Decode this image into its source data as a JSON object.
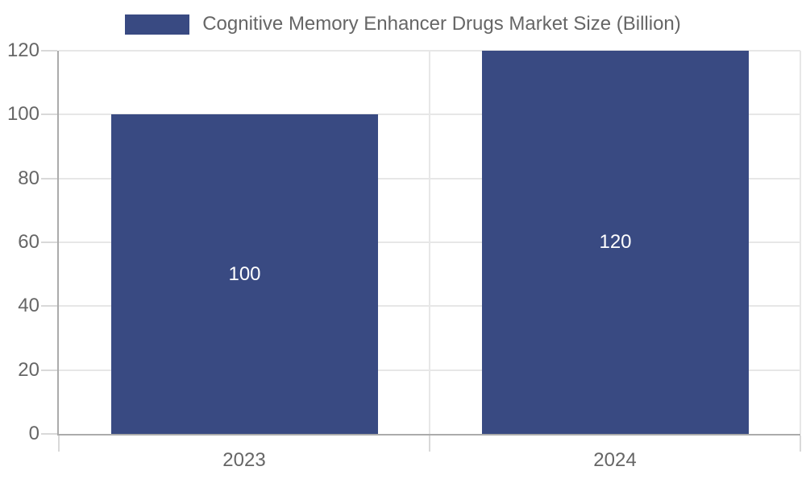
{
  "legend": {
    "label": "Cognitive Memory Enhancer Drugs Market Size (Billion)"
  },
  "chart_data": {
    "type": "bar",
    "title": "Cognitive Memory Enhancer Drugs Market Size (Billion)",
    "categories": [
      "2023",
      "2024"
    ],
    "values": [
      100,
      120
    ],
    "data_labels": [
      "100",
      "120"
    ],
    "xlabel": "",
    "ylabel": "",
    "ylim": [
      0,
      120
    ],
    "yticks": [
      0,
      20,
      40,
      60,
      80,
      100,
      120
    ],
    "grid": true,
    "legend_position": "top-center"
  },
  "colors": {
    "bar": "#394a82",
    "grid": "#e7e7e7",
    "axis": "#ababab",
    "tick": "#d9d9d9",
    "text": "#666666",
    "bar_label": "#ffffff",
    "background": "#ffffff"
  }
}
